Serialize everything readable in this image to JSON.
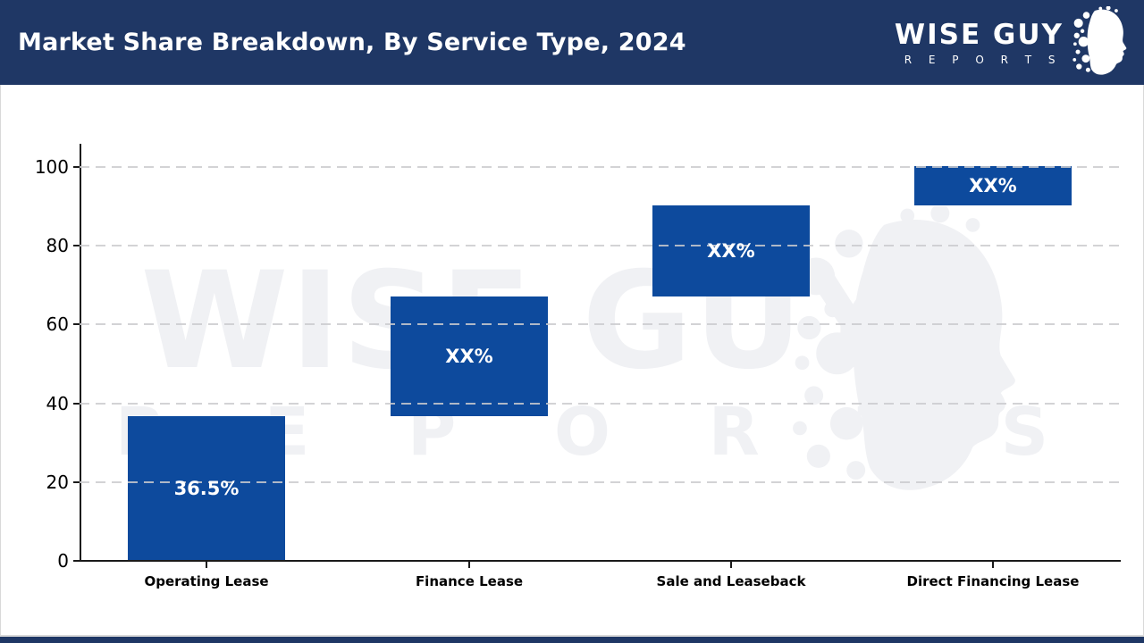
{
  "header": {
    "title": "Market Share Breakdown, By Service Type, 2024",
    "logo": {
      "line1": "WISE GUY",
      "line2": "R E P O R T S"
    }
  },
  "watermark": {
    "line1": "WISE GUY",
    "line2": "R E P O R T S"
  },
  "colors": {
    "header_bg": "#1f3765",
    "bar": "#0d4a9d",
    "grid": "#cbcbce",
    "axis": "#1a1a1a",
    "watermark": "#f0f1f4",
    "bar_label": "#ffffff"
  },
  "chart_data": {
    "type": "bar",
    "subtype": "waterfall-floating-bars",
    "title": "Market Share Breakdown, By Service Type, 2024",
    "categories": [
      "Operating Lease",
      "Finance Lease",
      "Sale and Leaseback",
      "Direct Financing Lease"
    ],
    "segments": [
      {
        "category": "Operating Lease",
        "start": 0,
        "end": 36.5,
        "label": "36.5%"
      },
      {
        "category": "Finance Lease",
        "start": 36.5,
        "end": 67,
        "label": "XX%"
      },
      {
        "category": "Sale and Leaseback",
        "start": 67,
        "end": 90,
        "label": "XX%"
      },
      {
        "category": "Direct Financing Lease",
        "start": 90,
        "end": 100,
        "label": "XX%"
      }
    ],
    "xlabel": "",
    "ylabel": "",
    "ylim": [
      0,
      100
    ],
    "yticks": [
      0,
      20,
      40,
      60,
      80,
      100
    ],
    "grid": "horizontal dashed, drawn over bars",
    "legend": "none"
  }
}
